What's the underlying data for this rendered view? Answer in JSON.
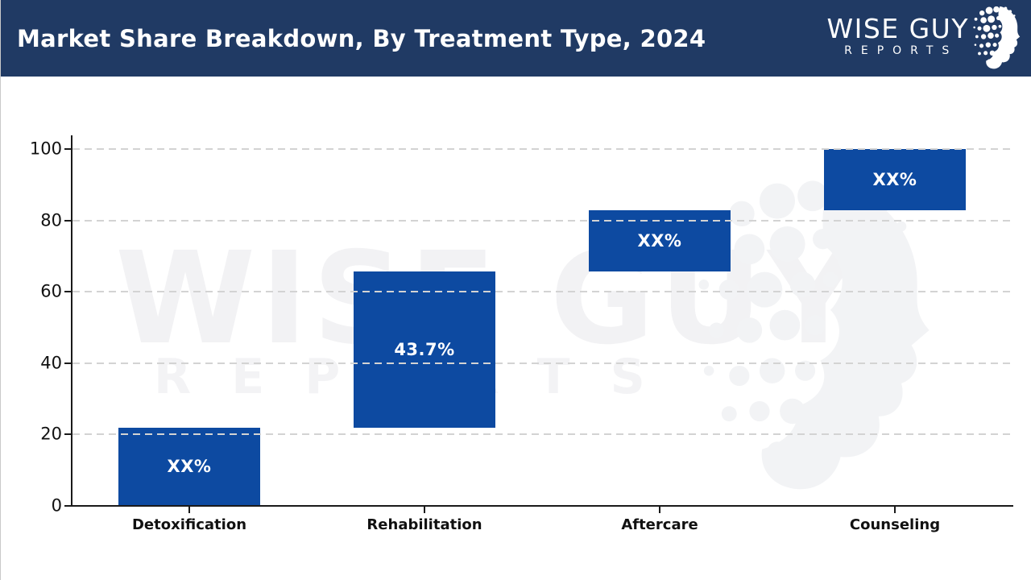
{
  "header": {
    "title": "Market Share Breakdown, By Treatment Type, 2024",
    "logo": {
      "wordmark": "WISE GUY",
      "reports": "REPORTS"
    }
  },
  "watermark": {
    "wordmark": "WISE GUY",
    "reports": "REPORTS"
  },
  "chart_data": {
    "type": "bar",
    "subtype": "floating-segment-waterfall",
    "title": "Market Share Breakdown, By Treatment Type, 2024",
    "categories": [
      "Detoxification",
      "Rehabilitation",
      "Aftercare",
      "Counseling"
    ],
    "segments": [
      {
        "category": "Detoxification",
        "start": 0,
        "end": 22,
        "label": "XX%"
      },
      {
        "category": "Rehabilitation",
        "start": 22,
        "end": 65.7,
        "label": "43.7%"
      },
      {
        "category": "Aftercare",
        "start": 65.7,
        "end": 82.9,
        "label": "XX%"
      },
      {
        "category": "Counseling",
        "start": 82.9,
        "end": 100,
        "label": "XX%"
      }
    ],
    "xlabel": "",
    "ylabel": "",
    "ylim": [
      0,
      104
    ],
    "yticks": [
      0,
      20,
      40,
      60,
      80,
      100
    ],
    "grid": "horizontal-dashed",
    "legend": "none",
    "bar_color": "#0d4aa1",
    "value_label_color": "#ffffff",
    "axis_color": "#1a1a1a",
    "grid_color": "#d3d3d3"
  },
  "colors": {
    "header_bg": "#203a64",
    "canvas_bg": "#ffffff",
    "watermark": "#f2f2f4"
  }
}
